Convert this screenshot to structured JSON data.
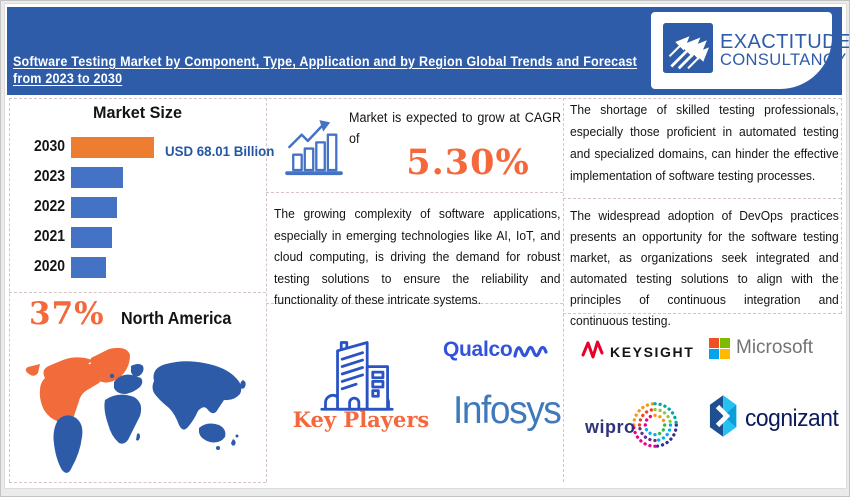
{
  "header": {
    "title": "Software Testing Market by Component, Type, Application and by Region Global Trends and Forecast from 2023 to 2030",
    "brand": {
      "line1": "EXACTITUDE",
      "line2": "CONSULTANCY"
    }
  },
  "chart_data": {
    "type": "bar",
    "orientation": "horizontal",
    "title": "Market Size",
    "categories": [
      "2030",
      "2023",
      "2022",
      "2021",
      "2020"
    ],
    "values": [
      68.01,
      43,
      38,
      34,
      29
    ],
    "unit": "USD Billion",
    "value_annotation": "USD 68.01 Billion",
    "annotation_for_category": "2030",
    "bar_color": "#4472C4",
    "highlight_color": "#ED7D31",
    "highlight_index": 0,
    "axes_shown": false,
    "grid": false,
    "legend": false
  },
  "region": {
    "share": "37%",
    "name": "North America",
    "map_highlight": "North America",
    "map_highlight_color": "#F26B3A",
    "map_base_color": "#2E5BA8"
  },
  "cagr": {
    "text": "Market is expected to grow at CAGR of",
    "value": "5.30%",
    "accent_color": "#F4683C",
    "icon": "growth-chart-icon"
  },
  "insights": {
    "restraint": "The shortage of skilled testing professionals, especially those proficient in automated testing and specialized domains, can hinder the effective implementation of software testing processes.",
    "driver": "The growing complexity of software applications, especially in emerging technologies like AI, IoT, and cloud computing, is driving the demand for robust testing solutions to ensure the reliability and functionality of these intricate systems.",
    "opportunity": "The widespread adoption of DevOps practices presents an opportunity for the software testing market, as organizations seek integrated and automated testing solutions to align with the principles of continuous integration and continuous testing."
  },
  "key_players": {
    "label": "Key Players",
    "icon": "buildings-icon",
    "companies": [
      {
        "name": "Qualcomm",
        "display": "Qualco",
        "color": "#3253DC"
      },
      {
        "name": "Keysight",
        "display": "KEYSIGHT",
        "color": "#141414",
        "icon_color": "#E90029"
      },
      {
        "name": "Microsoft",
        "display": "Microsoft",
        "color": "#737373",
        "square_colors": [
          "#F25022",
          "#7FBA00",
          "#00A4EF",
          "#FFB900"
        ]
      },
      {
        "name": "Infosys",
        "display": "Infosys",
        "color": "#4079BA"
      },
      {
        "name": "Wipro",
        "display": "wipro",
        "color": "#32327A"
      },
      {
        "name": "Cognizant",
        "display": "cognizant",
        "color": "#0A1A5C"
      }
    ]
  },
  "colors": {
    "header_blue": "#2F5CA9",
    "logo_blue": "#2E5CA8",
    "annotation_blue": "#2457A3",
    "accent_orange": "#F4683C",
    "dashed_divider": "#D4C4C4"
  }
}
